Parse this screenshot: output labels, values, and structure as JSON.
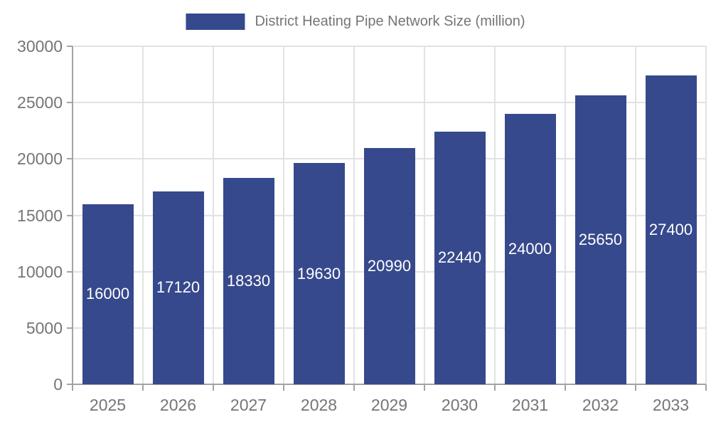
{
  "chart_data": {
    "type": "bar",
    "title": "District Heating Pipe Network Size (million)",
    "categories": [
      "2025",
      "2026",
      "2027",
      "2028",
      "2029",
      "2030",
      "2031",
      "2032",
      "2033"
    ],
    "values": [
      16000,
      17120,
      18330,
      19630,
      20990,
      22440,
      24000,
      25650,
      27400
    ],
    "series": [
      {
        "name": "District Heating Pipe Network Size (million)",
        "values": [
          16000,
          17120,
          18330,
          19630,
          20990,
          22440,
          24000,
          25650,
          27400
        ]
      }
    ],
    "xlabel": "",
    "ylabel": "",
    "ylim": [
      0,
      30000
    ],
    "yticks": [
      0,
      5000,
      10000,
      15000,
      20000,
      25000,
      30000
    ],
    "ytick_labels": [
      "0",
      "5000",
      "10000",
      "15000",
      "20000",
      "25000",
      "30000"
    ],
    "bar_value_labels": [
      "16000",
      "17120",
      "18330",
      "19630",
      "20990",
      "22440",
      "24000",
      "25650",
      "27400"
    ],
    "grid": true,
    "legend_position": "top-center",
    "legend_label": "District Heating Pipe Network Size (million)"
  },
  "colors": {
    "bar": "#36498c",
    "bar_label_text": "#ffffff",
    "grid_line": "#e2e2e2",
    "axis_line": "#a3a3a3",
    "tick_mark": "#a3a3a3",
    "tick_text": "#757575",
    "legend_text": "#757575",
    "background": "#ffffff"
  }
}
